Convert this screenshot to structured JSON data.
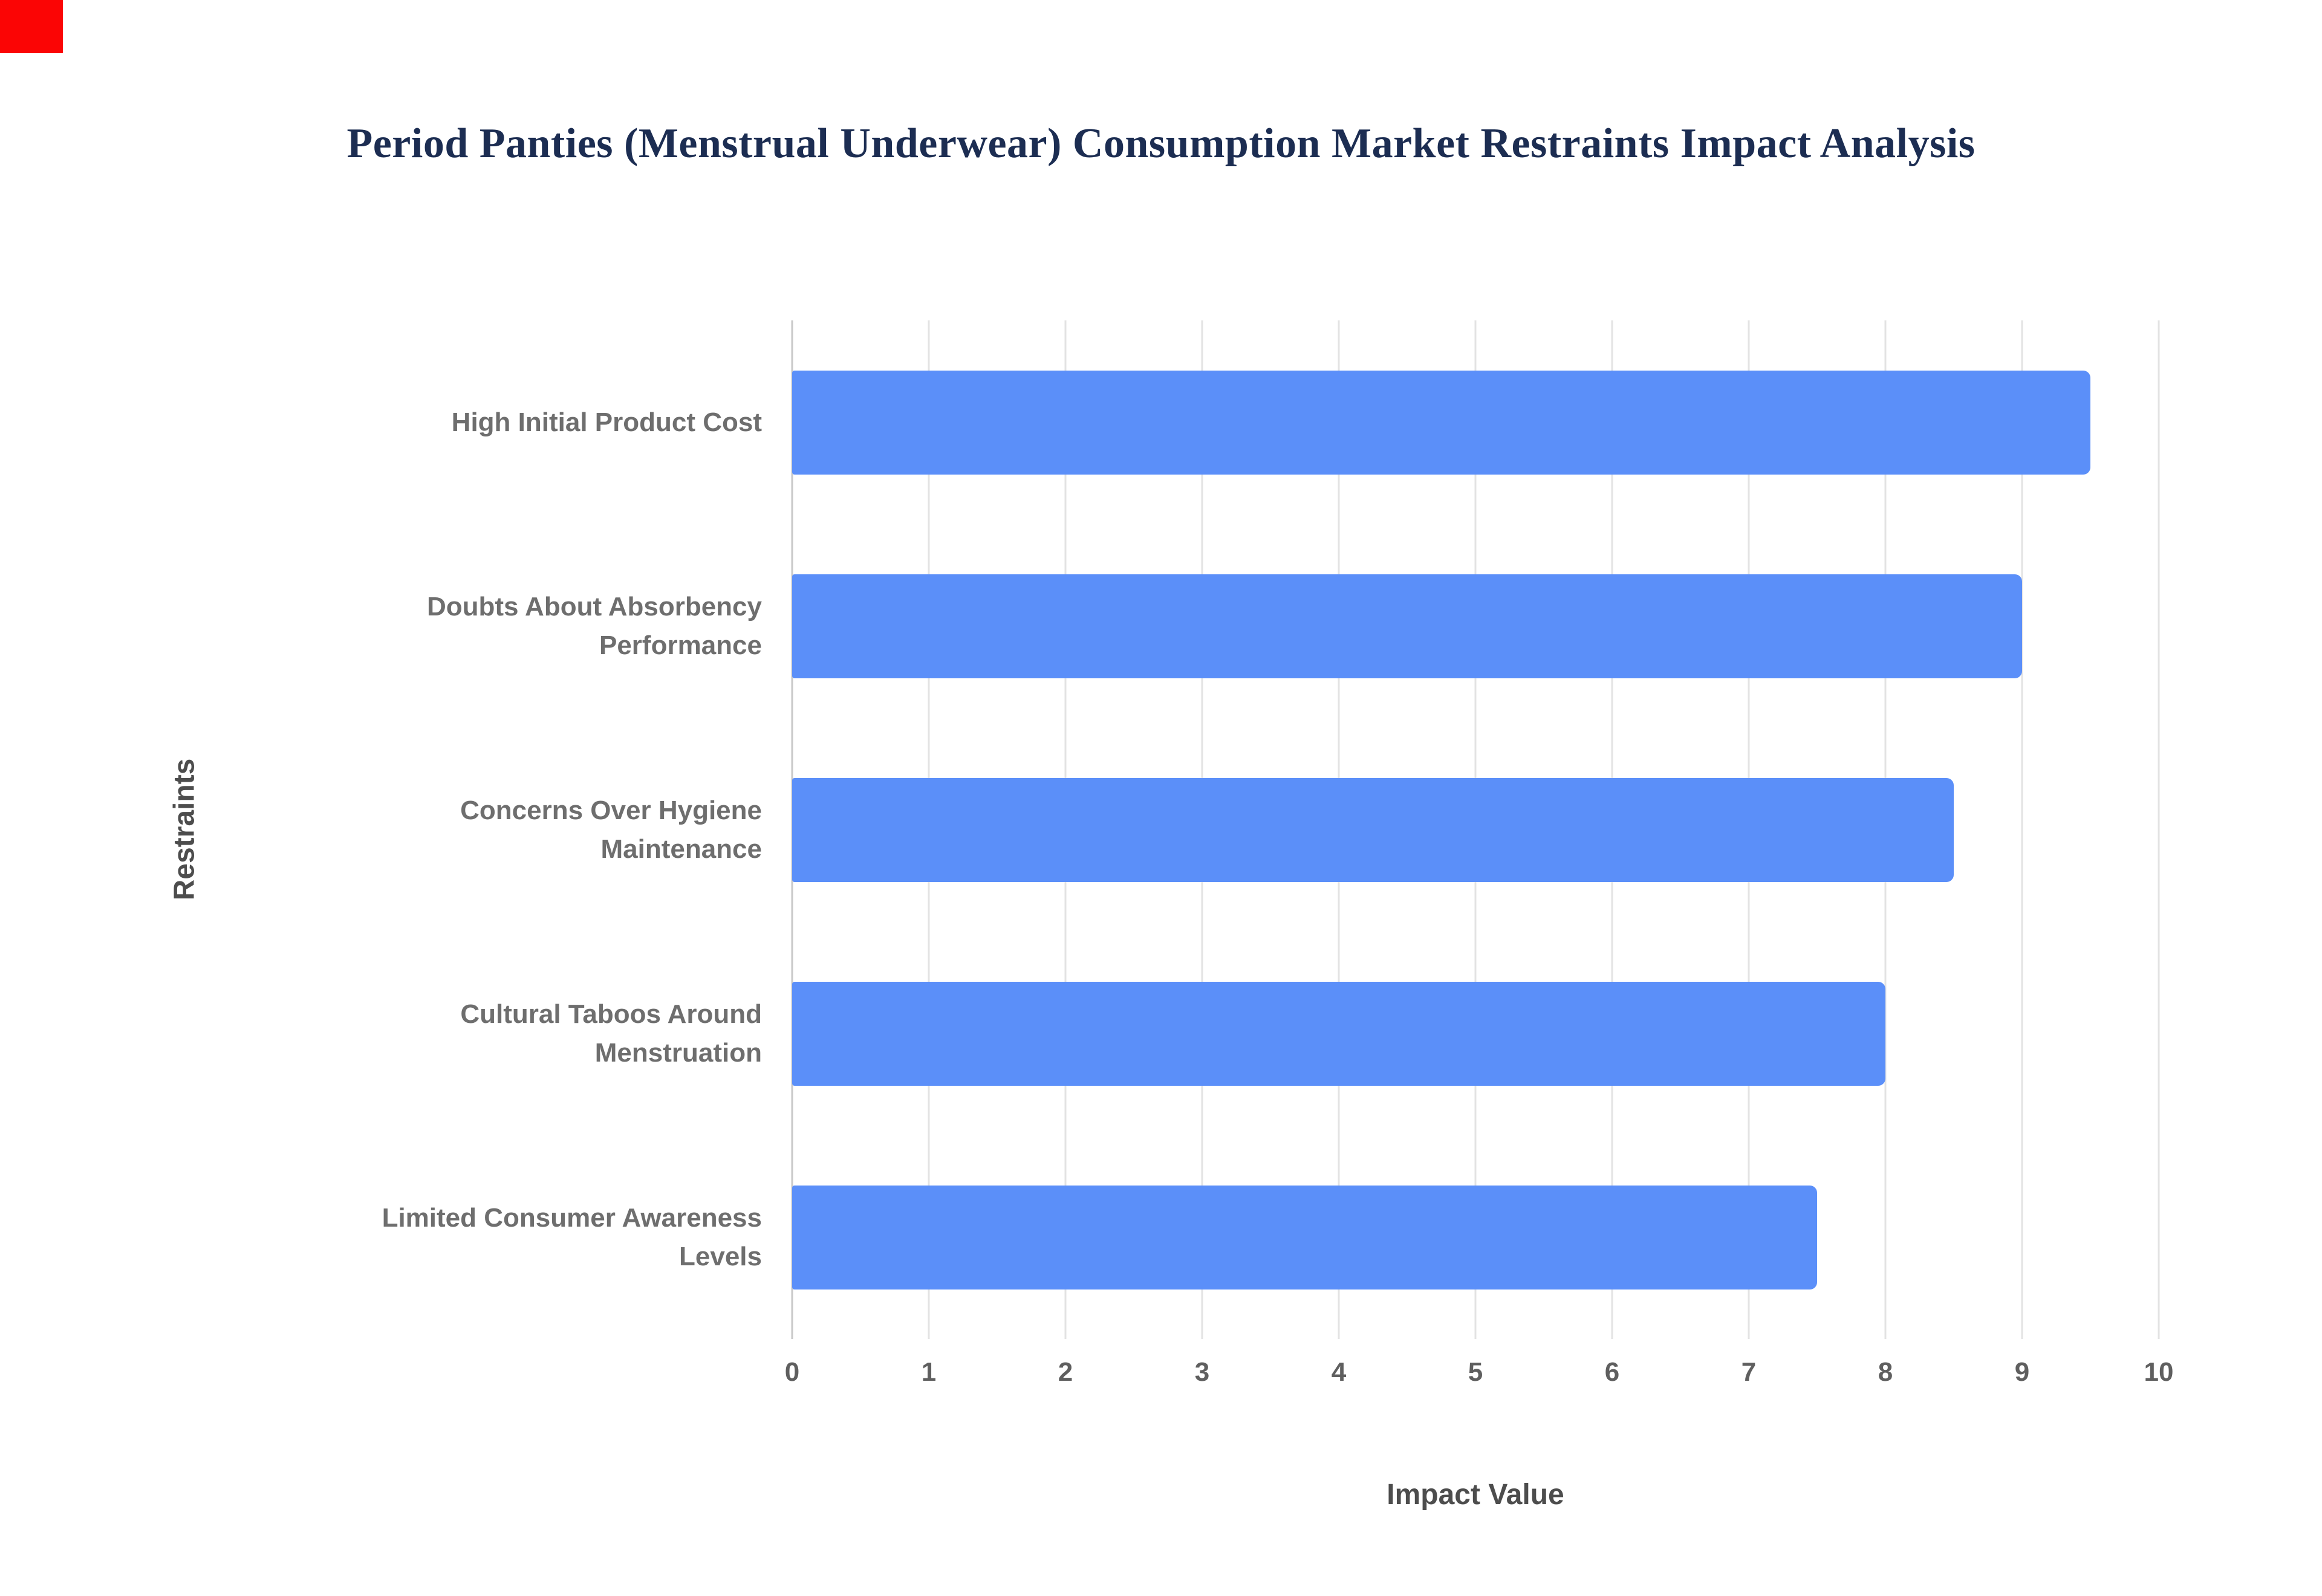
{
  "page": {
    "red_marker_color": "#fb0505",
    "background_color": "#ffffff"
  },
  "chart_data": {
    "type": "bar",
    "orientation": "horizontal",
    "title": "Period Panties (Menstrual Underwear) Consumption Market Restraints Impact Analysis",
    "categories": [
      "High Initial Product Cost",
      "Doubts About Absorbency Performance",
      "Concerns Over Hygiene Maintenance",
      "Cultural Taboos Around Menstruation",
      "Limited Consumer Awareness Levels"
    ],
    "values": [
      9.5,
      9,
      8.5,
      8,
      7.5
    ],
    "xlabel": "Impact Value",
    "ylabel": "Restraints",
    "xlim": [
      0,
      10
    ],
    "xticks": [
      0,
      1,
      2,
      3,
      4,
      5,
      6,
      7,
      8,
      9,
      10
    ],
    "bar_color": "#5b8ff9",
    "grid": true,
    "legend": "none",
    "title_color": "#1c2d52",
    "label_color": "#6e6e6e"
  }
}
